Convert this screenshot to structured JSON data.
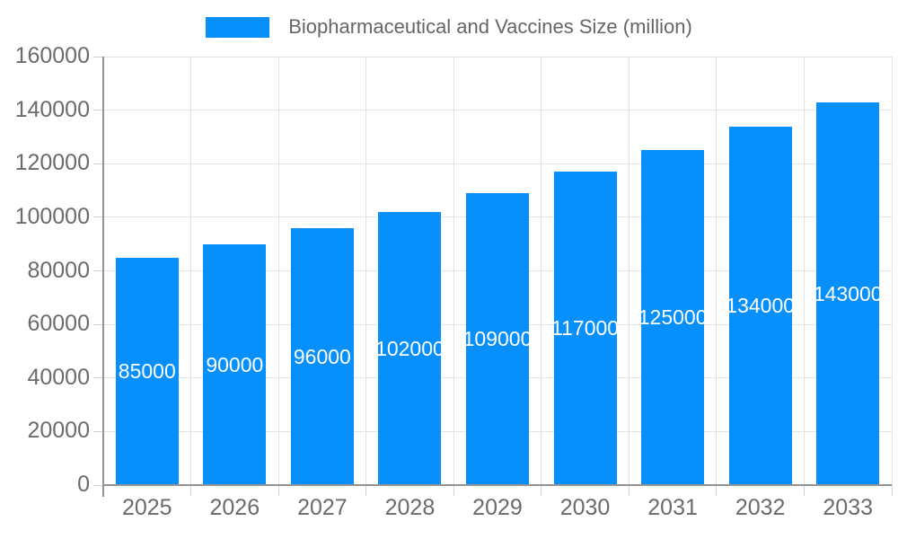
{
  "legend": {
    "swatch_icon": "legend-color-swatch"
  },
  "chart_data": {
    "type": "bar",
    "title": "Biopharmaceutical and Vaccines Size (million)",
    "series_name": "Biopharmaceutical and Vaccines Size (million)",
    "categories": [
      "2025",
      "2026",
      "2027",
      "2028",
      "2029",
      "2030",
      "2031",
      "2032",
      "2033"
    ],
    "values": [
      85000,
      90000,
      96000,
      102000,
      109000,
      117000,
      125000,
      134000,
      143000
    ],
    "value_labels": [
      "85000",
      "90000",
      "96000",
      "102000",
      "109000",
      "117000",
      "125000",
      "134000",
      "143000"
    ],
    "xlabel": "",
    "ylabel": "",
    "ylim": [
      0,
      160000
    ],
    "yticks": [
      0,
      20000,
      40000,
      60000,
      80000,
      100000,
      120000,
      140000,
      160000
    ],
    "ytick_labels": [
      "0",
      "20000",
      "40000",
      "60000",
      "80000",
      "100000",
      "120000",
      "140000",
      "160000"
    ],
    "grid": true,
    "legend_position": "top-center",
    "bar_color": "#0790fb",
    "value_label_color": "#ffffff",
    "axis_text_color": "#6b6b6b",
    "title_color": "#666666",
    "grid_color": "#e3e3e3",
    "tick_color": "#d2d2d2",
    "axis_line_color": "#949494"
  }
}
